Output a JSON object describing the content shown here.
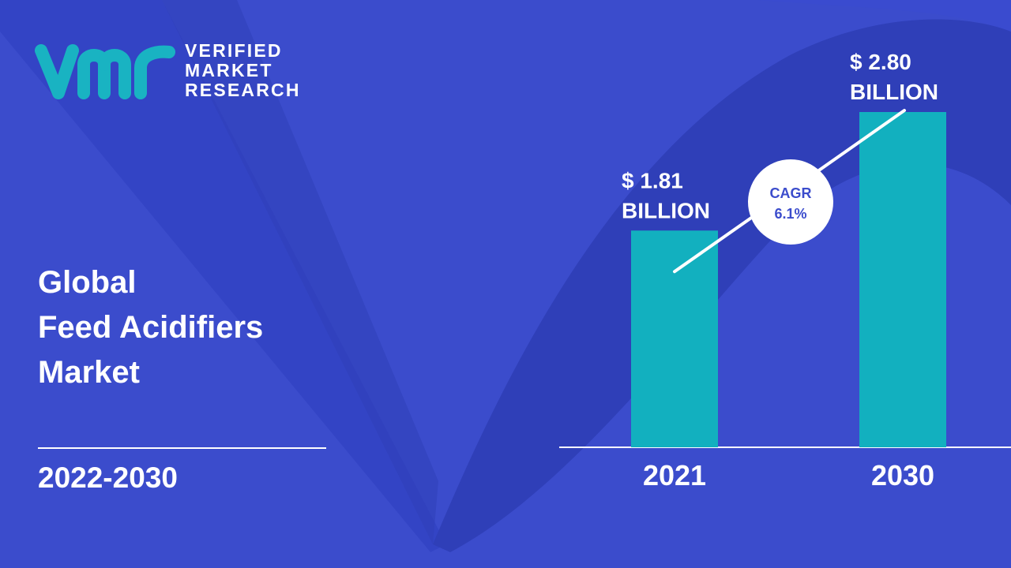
{
  "brand": {
    "name_lines": [
      "VERIFIED",
      "MARKET",
      "RESEARCH"
    ],
    "logo_mark": "vmr"
  },
  "report": {
    "title_lines": [
      "Global",
      "Feed Acidifiers",
      "Market"
    ],
    "period": "2022-2030"
  },
  "colors": {
    "background": "#3b4ccc",
    "background_shape": "#2f3fb8",
    "bar": "#12b0bf",
    "logo": "#19b3c2",
    "text": "#ffffff",
    "cagr_text": "#3b4ccc"
  },
  "chart_data": {
    "type": "bar",
    "categories": [
      "2021",
      "2030"
    ],
    "values": [
      1.81,
      2.8
    ],
    "value_labels": [
      [
        "$ 1.81",
        "BILLION"
      ],
      [
        "$ 2.80",
        "BILLION"
      ]
    ],
    "cagr": {
      "label": "CAGR",
      "value": "6.1%"
    },
    "grid": false,
    "legend": "none"
  }
}
